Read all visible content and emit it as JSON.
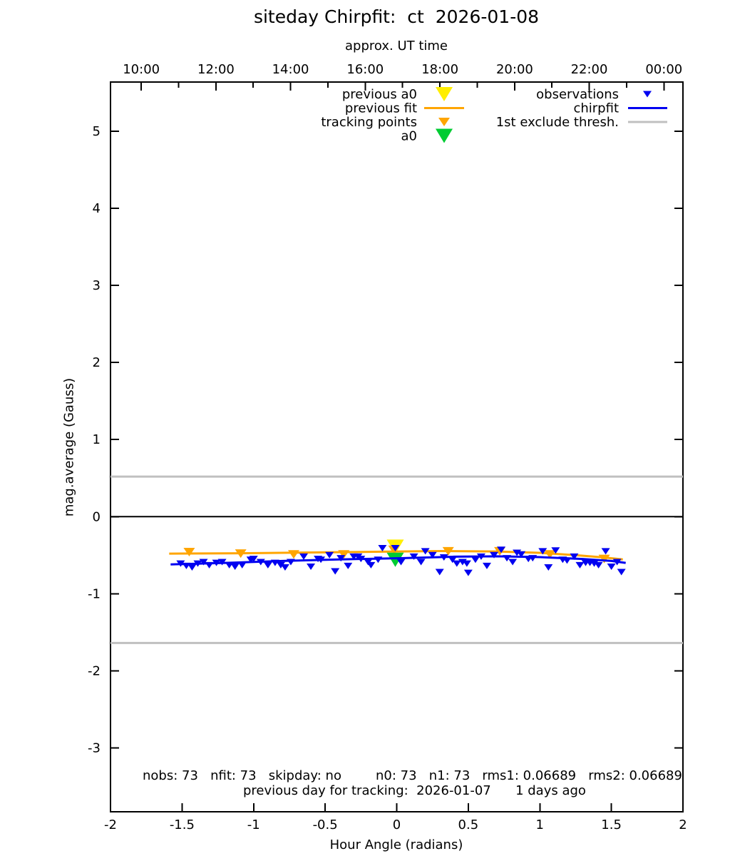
{
  "chart_data": {
    "type": "scatter",
    "title": "siteday Chirpfit:  ct  2026-01-08",
    "grid": false,
    "legend_position": "top-inside-two-columns",
    "top_axis": {
      "title": "approx. UT time",
      "ticks": [
        {
          "rad": -1.785,
          "label": "10:00"
        },
        {
          "rad": -1.524,
          "label": ""
        },
        {
          "rad": -1.263,
          "label": "12:00"
        },
        {
          "rad": -1.003,
          "label": ""
        },
        {
          "rad": -0.742,
          "label": "14:00"
        },
        {
          "rad": -0.481,
          "label": ""
        },
        {
          "rad": -0.22,
          "label": "16:00"
        },
        {
          "rad": 0.041,
          "label": ""
        },
        {
          "rad": 0.302,
          "label": "18:00"
        },
        {
          "rad": 0.563,
          "label": ""
        },
        {
          "rad": 0.824,
          "label": "20:00"
        },
        {
          "rad": 1.084,
          "label": ""
        },
        {
          "rad": 1.345,
          "label": "22:00"
        },
        {
          "rad": 1.606,
          "label": ""
        },
        {
          "rad": 1.867,
          "label": "00:00"
        }
      ]
    },
    "x_axis": {
      "label": "Hour Angle (radians)",
      "range": [
        -2,
        2
      ],
      "ticks": [
        -2,
        -1.5,
        -1,
        -0.5,
        0,
        0.5,
        1,
        1.5,
        2
      ],
      "tick_labels": [
        "-2",
        "-1.5",
        "-1",
        "-0.5",
        "0",
        "0.5",
        "1",
        "1.5",
        "2"
      ]
    },
    "y_axis": {
      "label": "mag.average (Gauss)",
      "range": [
        -3.83,
        5.64
      ],
      "ticks": [
        -3,
        -2,
        -1,
        0,
        1,
        2,
        3,
        4,
        5
      ],
      "tick_labels": [
        "-3",
        "-2",
        "-1",
        "0",
        "1",
        "2",
        "3",
        "4",
        "5"
      ]
    },
    "colors": {
      "observations": "#0000f0",
      "chirpfit": "#0000f0",
      "previous_fit": "#ffa500",
      "tracking_points": "#ffa500",
      "previous_a0": "#ffee00",
      "a0": "#00cc33",
      "exclude_threshold": "#c0c0c0",
      "zero_axis": "#000000",
      "frame": "#000000"
    },
    "legend": {
      "left": [
        {
          "label": "previous a0",
          "marker": "triangle-large",
          "color": "#ffee00"
        },
        {
          "label": "previous fit",
          "marker": "line",
          "color": "#ffa500"
        },
        {
          "label": "tracking points",
          "marker": "triangle-medium",
          "color": "#ffa500"
        },
        {
          "label": "a0",
          "marker": "triangle-large",
          "color": "#00cc33"
        }
      ],
      "right": [
        {
          "label": "observations",
          "marker": "triangle-small",
          "color": "#0000f0"
        },
        {
          "label": "chirpfit",
          "marker": "line",
          "color": "#0000f0"
        },
        {
          "label": "1st exclude thresh.",
          "marker": "line",
          "color": "#c0c0c0"
        }
      ]
    },
    "series": [
      {
        "name": "zero-axis",
        "type": "hline",
        "color": "#000000",
        "width": 2,
        "values": [
          0
        ]
      },
      {
        "name": "previous a0",
        "type": "points",
        "marker": "triangle-large",
        "color": "#ffee00",
        "points": [
          [
            -0.01,
            -0.39
          ]
        ]
      },
      {
        "name": "previous fit",
        "type": "line",
        "color": "#ffa500",
        "width": 3,
        "points": [
          [
            -1.59,
            -0.48
          ],
          [
            -1.1,
            -0.475
          ],
          [
            -0.6,
            -0.465
          ],
          [
            -0.1,
            -0.455
          ],
          [
            0.3,
            -0.447
          ],
          [
            0.7,
            -0.452
          ],
          [
            1.0,
            -0.47
          ],
          [
            1.25,
            -0.5
          ],
          [
            1.45,
            -0.53
          ],
          [
            1.58,
            -0.555
          ]
        ]
      },
      {
        "name": "tracking points",
        "type": "points",
        "marker": "triangle-medium",
        "color": "#ffa500",
        "points": [
          [
            -1.45,
            -0.46
          ],
          [
            -1.09,
            -0.48
          ],
          [
            -0.72,
            -0.49
          ],
          [
            -0.37,
            -0.49
          ],
          [
            -0.02,
            -0.43
          ],
          [
            0.36,
            -0.45
          ],
          [
            0.72,
            -0.45
          ],
          [
            1.07,
            -0.49
          ],
          [
            1.45,
            -0.55
          ]
        ]
      },
      {
        "name": "a0",
        "type": "points",
        "marker": "triangle-large",
        "color": "#00cc33",
        "points": [
          [
            -0.01,
            -0.56
          ]
        ]
      },
      {
        "name": "observations",
        "type": "points",
        "marker": "triangle-small",
        "color": "#0000f0",
        "points": [
          [
            -1.51,
            -0.61
          ],
          [
            -1.47,
            -0.64
          ],
          [
            -1.43,
            -0.66
          ],
          [
            -1.39,
            -0.61
          ],
          [
            -1.35,
            -0.59
          ],
          [
            -1.31,
            -0.63
          ],
          [
            -1.26,
            -0.6
          ],
          [
            -1.22,
            -0.59
          ],
          [
            -1.17,
            -0.63
          ],
          [
            -1.13,
            -0.65
          ],
          [
            -1.08,
            -0.63
          ],
          [
            -1.02,
            -0.56
          ],
          [
            -1.0,
            -0.55
          ],
          [
            -0.95,
            -0.59
          ],
          [
            -0.9,
            -0.63
          ],
          [
            -0.85,
            -0.6
          ],
          [
            -0.81,
            -0.63
          ],
          [
            -0.78,
            -0.66
          ],
          [
            -0.74,
            -0.59
          ],
          [
            -0.65,
            -0.52
          ],
          [
            -0.6,
            -0.65
          ],
          [
            -0.55,
            -0.55
          ],
          [
            -0.53,
            -0.56
          ],
          [
            -0.47,
            -0.5
          ],
          [
            -0.43,
            -0.71
          ],
          [
            -0.39,
            -0.54
          ],
          [
            -0.34,
            -0.64
          ],
          [
            -0.3,
            -0.52
          ],
          [
            -0.27,
            -0.52
          ],
          [
            -0.25,
            -0.55
          ],
          [
            -0.2,
            -0.59
          ],
          [
            -0.18,
            -0.63
          ],
          [
            -0.13,
            -0.56
          ],
          [
            -0.1,
            -0.41
          ],
          [
            -0.01,
            -0.41
          ],
          [
            0.03,
            -0.59
          ],
          [
            0.12,
            -0.52
          ],
          [
            0.17,
            -0.59
          ],
          [
            0.2,
            -0.45
          ],
          [
            0.25,
            -0.5
          ],
          [
            0.3,
            -0.72
          ],
          [
            0.33,
            -0.53
          ],
          [
            0.39,
            -0.56
          ],
          [
            0.42,
            -0.61
          ],
          [
            0.46,
            -0.59
          ],
          [
            0.49,
            -0.61
          ],
          [
            0.5,
            -0.73
          ],
          [
            0.55,
            -0.56
          ],
          [
            0.59,
            -0.52
          ],
          [
            0.63,
            -0.64
          ],
          [
            0.68,
            -0.5
          ],
          [
            0.73,
            -0.43
          ],
          [
            0.77,
            -0.54
          ],
          [
            0.81,
            -0.59
          ],
          [
            0.84,
            -0.47
          ],
          [
            0.87,
            -0.49
          ],
          [
            0.92,
            -0.55
          ],
          [
            0.95,
            -0.54
          ],
          [
            1.02,
            -0.45
          ],
          [
            1.06,
            -0.66
          ],
          [
            1.11,
            -0.44
          ],
          [
            1.16,
            -0.56
          ],
          [
            1.19,
            -0.57
          ],
          [
            1.24,
            -0.52
          ],
          [
            1.28,
            -0.63
          ],
          [
            1.32,
            -0.6
          ],
          [
            1.35,
            -0.6
          ],
          [
            1.38,
            -0.61
          ],
          [
            1.41,
            -0.63
          ],
          [
            1.46,
            -0.45
          ],
          [
            1.5,
            -0.65
          ],
          [
            1.54,
            -0.59
          ],
          [
            1.57,
            -0.72
          ]
        ]
      },
      {
        "name": "chirpfit",
        "type": "line",
        "color": "#0000f0",
        "width": 3,
        "points": [
          [
            -1.58,
            -0.62
          ],
          [
            -1.2,
            -0.6
          ],
          [
            -0.8,
            -0.575
          ],
          [
            -0.4,
            -0.555
          ],
          [
            0,
            -0.54
          ],
          [
            0.4,
            -0.52
          ],
          [
            0.7,
            -0.515
          ],
          [
            1.0,
            -0.525
          ],
          [
            1.3,
            -0.55
          ],
          [
            1.5,
            -0.575
          ],
          [
            1.6,
            -0.6
          ]
        ]
      },
      {
        "name": "1st exclude thresh.",
        "type": "hline",
        "color": "#c0c0c0",
        "width": 3,
        "values": [
          0.52,
          -1.64
        ]
      }
    ],
    "stats": {
      "nobs": 73,
      "nfit": 73,
      "skipday": "no",
      "n0": 73,
      "n1": 73,
      "rms1": 0.06689,
      "rms2": 0.06689,
      "previous_day_for_tracking": "2026-01-07",
      "days_ago": "1 days ago"
    },
    "footer": {
      "line1_left": "nobs: 73   nfit: 73   skipday: no",
      "line1_right": "n0: 73   n1: 73   rms1: 0.06689   rms2: 0.06689",
      "line2": "previous day for tracking:  2026-01-07      1 days ago"
    }
  }
}
